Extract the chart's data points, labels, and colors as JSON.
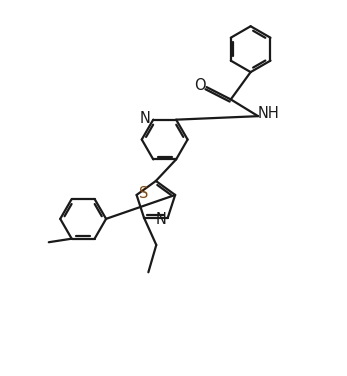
{
  "background_color": "#ffffff",
  "line_color": "#1a1a1a",
  "s_color": "#8B4500",
  "bond_lw": 1.6,
  "figsize": [
    3.47,
    3.76
  ],
  "dpi": 100,
  "xlim": [
    0.0,
    7.5
  ],
  "ylim": [
    0.0,
    8.5
  ]
}
